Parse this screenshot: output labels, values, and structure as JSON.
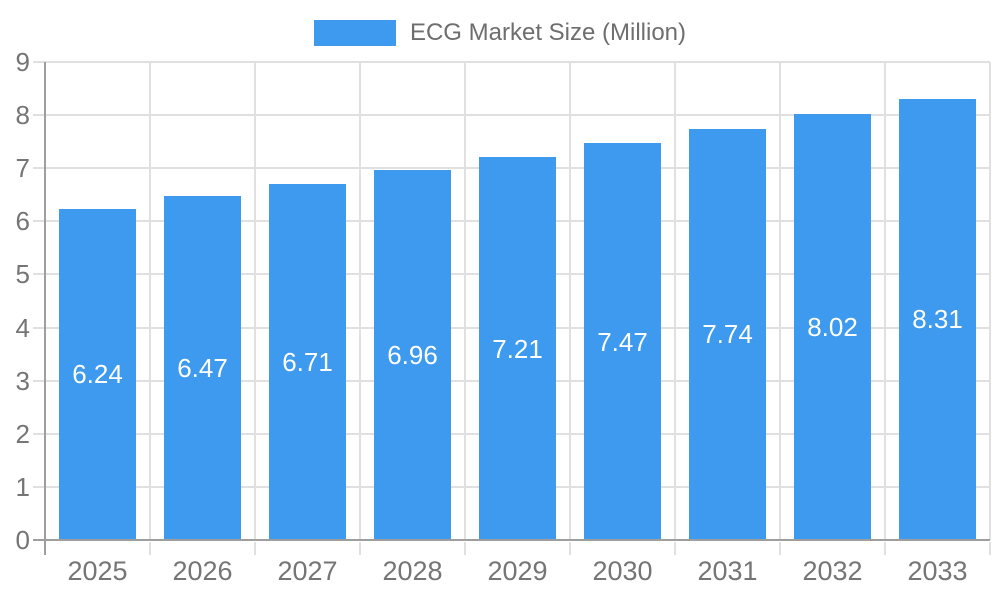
{
  "legend": {
    "label": "ECG Market Size (Million)"
  },
  "colors": {
    "bar": "#3d9aee",
    "axis_line": "#9e9e9e",
    "gridline": "#e0e0e0",
    "tick_label": "#757575",
    "legend_text": "#6e6e6e",
    "value_label": "#ffffff",
    "background": "#ffffff"
  },
  "chart_data": {
    "type": "bar",
    "title": "",
    "legend": "ECG Market Size (Million)",
    "legend_position": "top-center",
    "categories": [
      "2025",
      "2026",
      "2027",
      "2028",
      "2029",
      "2030",
      "2031",
      "2032",
      "2033"
    ],
    "values": [
      6.24,
      6.47,
      6.71,
      6.96,
      7.21,
      7.47,
      7.74,
      8.02,
      8.31
    ],
    "value_labels": [
      "6.24",
      "6.47",
      "6.71",
      "6.96",
      "7.21",
      "7.47",
      "7.74",
      "8.02",
      "8.31"
    ],
    "value_label_position": "centered-inside-bar",
    "xlabel": "",
    "ylabel": "",
    "ylim": [
      0,
      9
    ],
    "yticks": [
      0,
      1,
      2,
      3,
      4,
      5,
      6,
      7,
      8,
      9
    ],
    "grid": true,
    "grid_vertical": true
  }
}
